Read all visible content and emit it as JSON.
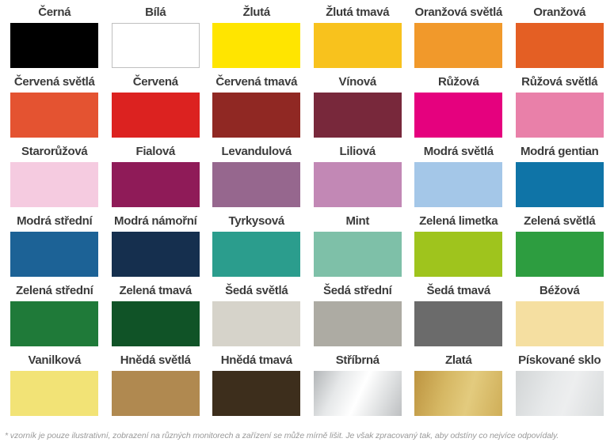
{
  "chart_data": {
    "type": "table",
    "title": "Color sample swatch chart (Czech vinyl color names)",
    "layout": "6 columns x 6 rows, label above each color swatch",
    "swatches_flat_count": 36
  },
  "swatches": [
    {
      "label": "Černá",
      "color": "#000000"
    },
    {
      "label": "Bílá",
      "color": "#ffffff",
      "border": "#bfbfbf"
    },
    {
      "label": "Žlutá",
      "color": "#ffe500"
    },
    {
      "label": "Žlutá tmavá",
      "color": "#f8c21d"
    },
    {
      "label": "Oranžová světlá",
      "color": "#f1992b"
    },
    {
      "label": "Oranžová",
      "color": "#e45f24"
    },
    {
      "label": "Červená světlá",
      "color": "#e45331"
    },
    {
      "label": "Červená",
      "color": "#dc2220"
    },
    {
      "label": "Červená tmavá",
      "color": "#902823"
    },
    {
      "label": "Vínová",
      "color": "#78283b"
    },
    {
      "label": "Růžová",
      "color": "#e5017e"
    },
    {
      "label": "Růžová světlá",
      "color": "#e980a9"
    },
    {
      "label": "Starorůžová",
      "color": "#f5cbe0"
    },
    {
      "label": "Fialová",
      "color": "#8f1b58"
    },
    {
      "label": "Levandulová",
      "color": "#96678e"
    },
    {
      "label": "Liliová",
      "color": "#c288b5"
    },
    {
      "label": "Modrá světlá",
      "color": "#a4c7e8"
    },
    {
      "label": "Modrá gentian",
      "color": "#0f74a7"
    },
    {
      "label": "Modrá střední",
      "color": "#1c6296"
    },
    {
      "label": "Modrá námořní",
      "color": "#152f4e"
    },
    {
      "label": "Tyrkysová",
      "color": "#2b9d8d"
    },
    {
      "label": "Mint",
      "color": "#7ec0a8"
    },
    {
      "label": "Zelená limetka",
      "color": "#9fc41d"
    },
    {
      "label": "Zelená světlá",
      "color": "#2d9d40"
    },
    {
      "label": "Zelená střední",
      "color": "#1f7a39"
    },
    {
      "label": "Zelená tmavá",
      "color": "#105327"
    },
    {
      "label": "Šedá světlá",
      "color": "#d6d3ca"
    },
    {
      "label": "Šedá střední",
      "color": "#adaba3"
    },
    {
      "label": "Šedá tmavá",
      "color": "#6b6b6b"
    },
    {
      "label": "Béžová",
      "color": "#f5dfa1"
    },
    {
      "label": "Vanilková",
      "color": "#f2e376"
    },
    {
      "label": "Hnědá světlá",
      "color": "#b08950"
    },
    {
      "label": "Hnědá tmavá",
      "color": "#3d2e1c"
    },
    {
      "label": "Stříbrná",
      "gradient": {
        "angle": 115,
        "stops": [
          "#b2b5b7",
          "#e6e8e9 28%",
          "#ffffff 52%",
          "#dcdedf 78%",
          "#bdbfc1 100%"
        ]
      }
    },
    {
      "label": "Zlatá",
      "gradient": {
        "angle": 105,
        "stops": [
          "#bd9440",
          "#d6b864 35%",
          "#e3cb7e 62%",
          "#cfae58 100%"
        ]
      }
    },
    {
      "label": "Pískované sklo",
      "gradient": {
        "angle": 110,
        "stops": [
          "#d2d5d6",
          "#e7e9ea 40%",
          "#edeeef 60%",
          "#d8dbdc 100%"
        ]
      }
    }
  ],
  "footnote": {
    "text": "* vzorník je pouze ilustrativní, zobrazení na různých monitorech a zařízení se může mírně lišit. Je však zpracovaný tak, aby odstíny co nejvíce odpovídaly."
  }
}
